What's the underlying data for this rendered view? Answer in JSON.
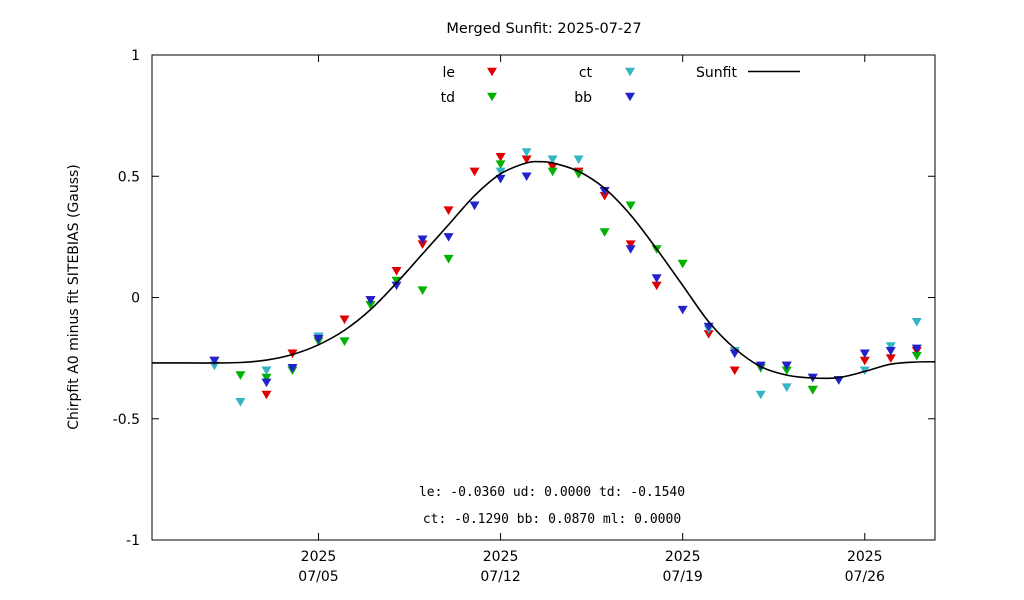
{
  "title": "Merged Sunfit: 2025-07-27",
  "stats": {
    "line1": "le: -0.0360   ud:  0.0000   td: -0.1540",
    "line2": "ct: -0.1290   bb:  0.0870   ml:  0.0000"
  },
  "colors": {
    "le": "#e00000",
    "td": "#00b200",
    "ct": "#33b5c4",
    "bb": "#2222cc",
    "sunfit": "#000000",
    "axis": "#000000",
    "background": "#ffffff"
  },
  "legend": {
    "position": "top-center-inside",
    "rows": [
      [
        {
          "label": "le",
          "color": "#e00000",
          "marker": "triangle-down"
        },
        {
          "label": "ct",
          "color": "#33b5c4",
          "marker": "triangle-down"
        },
        {
          "label": "Sunfit",
          "color": "#000000",
          "marker": "line"
        }
      ],
      [
        {
          "label": "td",
          "color": "#00b200",
          "marker": "triangle-down"
        },
        {
          "label": "bb",
          "color": "#2222cc",
          "marker": "triangle-down"
        }
      ]
    ]
  },
  "chart_data": {
    "type": "scatter",
    "title": "Merged Sunfit: 2025-07-27",
    "xlabel": "",
    "ylabel": "Chirpfit A0 minus fit SITEBIAS (Gauss)",
    "x_unit": "day of July 2025 (e.g. 5 = 2025-07-05)",
    "xlim": [
      -1.4,
      28.7
    ],
    "ylim": [
      -1,
      1
    ],
    "grid": false,
    "yticks": [
      {
        "v": 1,
        "label": "1"
      },
      {
        "v": 0.5,
        "label": "0.5"
      },
      {
        "v": 0,
        "label": "0"
      },
      {
        "v": -0.5,
        "label": "-0.5"
      },
      {
        "v": -1,
        "label": "-1"
      }
    ],
    "xticks": [
      {
        "day": 5,
        "top": "2025",
        "bottom": "07/05"
      },
      {
        "day": 12,
        "top": "2025",
        "bottom": "07/12"
      },
      {
        "day": 19,
        "top": "2025",
        "bottom": "07/19"
      },
      {
        "day": 26,
        "top": "2025",
        "bottom": "07/26"
      }
    ],
    "annotations": {
      "le": -0.036,
      "ud": 0.0,
      "td": -0.154,
      "ct": -0.129,
      "bb": 0.087,
      "ml": 0.0
    },
    "series": [
      {
        "name": "le",
        "marker": "triangle-down",
        "color": "#e00000",
        "points": [
          [
            1,
            -0.26
          ],
          [
            3,
            -0.4
          ],
          [
            4,
            -0.23
          ],
          [
            5,
            -0.17
          ],
          [
            6,
            -0.09
          ],
          [
            7,
            -0.01
          ],
          [
            8,
            0.11
          ],
          [
            9,
            0.22
          ],
          [
            10,
            0.36
          ],
          [
            11,
            0.52
          ],
          [
            12,
            0.58
          ],
          [
            13,
            0.57
          ],
          [
            14,
            0.54
          ],
          [
            15,
            0.52
          ],
          [
            16,
            0.42
          ],
          [
            17,
            0.22
          ],
          [
            18,
            0.05
          ],
          [
            20,
            -0.15
          ],
          [
            21,
            -0.3
          ],
          [
            23,
            -0.28
          ],
          [
            24,
            -0.38
          ],
          [
            26,
            -0.26
          ],
          [
            27,
            -0.25
          ],
          [
            28,
            -0.22
          ]
        ]
      },
      {
        "name": "td",
        "marker": "triangle-down",
        "color": "#00b200",
        "points": [
          [
            2,
            -0.32
          ],
          [
            3,
            -0.33
          ],
          [
            4,
            -0.3
          ],
          [
            5,
            -0.18
          ],
          [
            6,
            -0.18
          ],
          [
            7,
            -0.03
          ],
          [
            8,
            0.07
          ],
          [
            9,
            0.03
          ],
          [
            10,
            0.16
          ],
          [
            12,
            0.55
          ],
          [
            14,
            0.52
          ],
          [
            15,
            0.51
          ],
          [
            16,
            0.27
          ],
          [
            17,
            0.38
          ],
          [
            18,
            0.2
          ],
          [
            19,
            0.14
          ],
          [
            22,
            -0.29
          ],
          [
            23,
            -0.3
          ],
          [
            24,
            -0.38
          ],
          [
            25,
            -0.34
          ],
          [
            28,
            -0.24
          ]
        ]
      },
      {
        "name": "ct",
        "marker": "triangle-down",
        "color": "#33b5c4",
        "points": [
          [
            1,
            -0.28
          ],
          [
            2,
            -0.43
          ],
          [
            3,
            -0.3
          ],
          [
            5,
            -0.16
          ],
          [
            11,
            0.38
          ],
          [
            12,
            0.52
          ],
          [
            13,
            0.6
          ],
          [
            14,
            0.57
          ],
          [
            15,
            0.57
          ],
          [
            16,
            0.44
          ],
          [
            20,
            -0.13
          ],
          [
            21,
            -0.22
          ],
          [
            22,
            -0.4
          ],
          [
            23,
            -0.37
          ],
          [
            24,
            -0.33
          ],
          [
            26,
            -0.3
          ],
          [
            27,
            -0.2
          ],
          [
            28,
            -0.1
          ]
        ]
      },
      {
        "name": "bb",
        "marker": "triangle-down",
        "color": "#2222cc",
        "points": [
          [
            1,
            -0.26
          ],
          [
            3,
            -0.35
          ],
          [
            4,
            -0.29
          ],
          [
            5,
            -0.17
          ],
          [
            7,
            -0.01
          ],
          [
            8,
            0.05
          ],
          [
            9,
            0.24
          ],
          [
            10,
            0.25
          ],
          [
            11,
            0.38
          ],
          [
            12,
            0.49
          ],
          [
            13,
            0.5
          ],
          [
            16,
            0.44
          ],
          [
            17,
            0.2
          ],
          [
            18,
            0.08
          ],
          [
            19,
            -0.05
          ],
          [
            20,
            -0.12
          ],
          [
            21,
            -0.23
          ],
          [
            22,
            -0.28
          ],
          [
            23,
            -0.28
          ],
          [
            24,
            -0.33
          ],
          [
            25,
            -0.34
          ],
          [
            26,
            -0.23
          ],
          [
            27,
            -0.22
          ],
          [
            28,
            -0.21
          ]
        ]
      },
      {
        "name": "Sunfit",
        "type": "line",
        "color": "#000000",
        "points": [
          [
            -1.4,
            -0.27
          ],
          [
            0,
            -0.27
          ],
          [
            1,
            -0.27
          ],
          [
            2,
            -0.268
          ],
          [
            3,
            -0.258
          ],
          [
            4,
            -0.235
          ],
          [
            5,
            -0.195
          ],
          [
            6,
            -0.135
          ],
          [
            7,
            -0.05
          ],
          [
            8,
            0.06
          ],
          [
            9,
            0.18
          ],
          [
            10,
            0.3
          ],
          [
            11,
            0.42
          ],
          [
            12,
            0.51
          ],
          [
            13,
            0.555
          ],
          [
            13.5,
            0.56
          ],
          [
            14,
            0.555
          ],
          [
            15,
            0.52
          ],
          [
            16,
            0.45
          ],
          [
            17,
            0.34
          ],
          [
            18,
            0.2
          ],
          [
            19,
            0.05
          ],
          [
            20,
            -0.1
          ],
          [
            21,
            -0.21
          ],
          [
            22,
            -0.285
          ],
          [
            23,
            -0.32
          ],
          [
            24,
            -0.332
          ],
          [
            25,
            -0.33
          ],
          [
            26,
            -0.305
          ],
          [
            27,
            -0.275
          ],
          [
            28,
            -0.266
          ],
          [
            28.7,
            -0.265
          ]
        ]
      }
    ]
  }
}
